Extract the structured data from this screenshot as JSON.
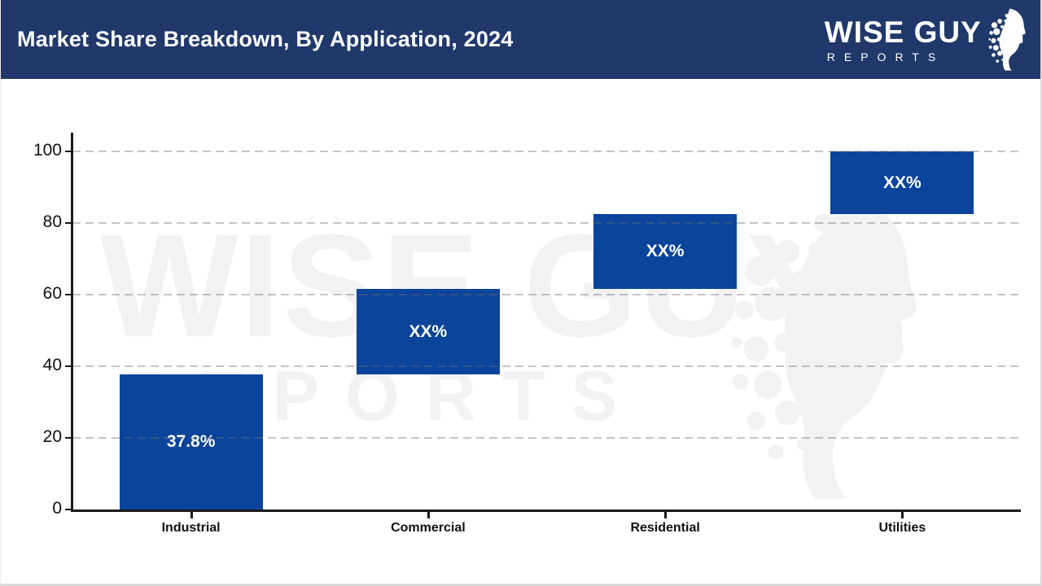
{
  "header": {
    "title": "Market Share Breakdown, By Application, 2024",
    "bg_color": "#20386a",
    "logo": {
      "line1": "WISE GUY",
      "line2": "REPORTS"
    }
  },
  "watermark": {
    "line1": "WISE GUY",
    "line2": "REPORTS"
  },
  "chart_data": {
    "type": "bar",
    "subtype": "floating-waterfall",
    "title": "Market Share Breakdown, By Application, 2024",
    "categories": [
      "Industrial",
      "Commercial",
      "Residential",
      "Utilities"
    ],
    "segments": [
      {
        "category": "Industrial",
        "start": 0,
        "end": 37.8,
        "label": "37.8%"
      },
      {
        "category": "Commercial",
        "start": 37.8,
        "end": 61.5,
        "label": "XX%"
      },
      {
        "category": "Residential",
        "start": 61.5,
        "end": 82.5,
        "label": "XX%"
      },
      {
        "category": "Utilities",
        "start": 82.5,
        "end": 100,
        "label": "XX%"
      }
    ],
    "ylim": [
      0,
      100
    ],
    "yticks": [
      0,
      20,
      40,
      60,
      80,
      100
    ],
    "xlabel": "",
    "ylabel": "",
    "grid": "horizontal-dashed",
    "legend": "none",
    "bar_color": "#0a449b",
    "bar_label_color": "#ffffff",
    "axis_color": "#1a1a1a"
  }
}
